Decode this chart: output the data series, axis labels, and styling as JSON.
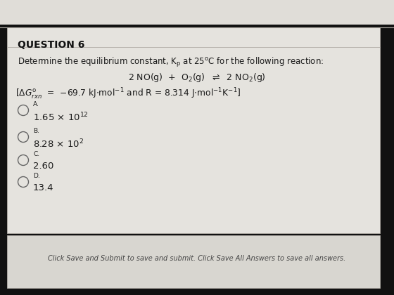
{
  "title": "QUESTION 6",
  "description": "Determine the equilibrium constant, K$_\\mathrm{p}$ at 25$^{\\mathrm{o}}$C for the following reaction:",
  "reaction": "2 NO(g)  +  O$_2$(g)  $\\rightleftharpoons$  2 NO$_2$(g)",
  "given": "[$\\Delta G^{\\mathrm{o}}_{rxn}$  =  $-$69.7 kJ$\\cdot$mol$^{-1}$ and R = 8.314 J$\\cdot$mol$^{-1}$K$^{-1}$]",
  "labels": [
    "A.",
    "B.",
    "C.",
    "D."
  ],
  "main_texts": [
    "1.65 $\\times$ 10$^{12}$",
    "8.28 $\\times$ 10$^{2}$",
    "2.60",
    "13.4"
  ],
  "footer": "Click Save and Submit to save and submit. Click Save All Answers to save all answers.",
  "top_bg": "#e0ddd8",
  "main_bg": "#e5e3de",
  "footer_bg": "#d8d6d0",
  "bottom_bg": "#111111",
  "border_color": "#b0aca5",
  "title_color": "#111111",
  "text_color": "#1a1a1a",
  "footer_color": "#444444"
}
